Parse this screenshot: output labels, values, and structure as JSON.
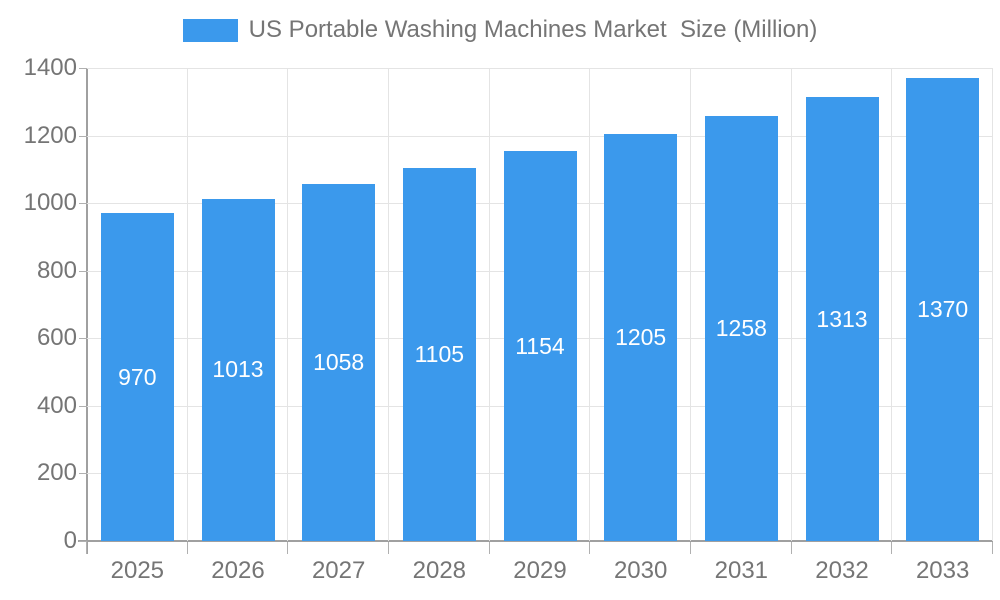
{
  "chart_data": {
    "type": "bar",
    "title": "US Portable Washing Machines Market  Size (Million)",
    "legend": {
      "position": "top",
      "label": "US Portable Washing Machines Market  Size (Million)"
    },
    "categories": [
      "2025",
      "2026",
      "2027",
      "2028",
      "2029",
      "2030",
      "2031",
      "2032",
      "2033"
    ],
    "values": [
      970,
      1013,
      1058,
      1105,
      1154,
      1205,
      1258,
      1313,
      1370
    ],
    "xlabel": "",
    "ylabel": "",
    "ylim": [
      0,
      1400
    ],
    "yticks": [
      0,
      200,
      400,
      600,
      800,
      1000,
      1200,
      1400
    ],
    "grid": true,
    "value_labels": "inside-center",
    "colors": {
      "bar": "#3b99ec",
      "axis_text": "#757575",
      "title_text": "#757575",
      "grid_line": "#e4e4e4",
      "axis_line": "#a0a0a0",
      "tick_line": "#b0b0b0",
      "value_label": "#ffffff",
      "background": "#ffffff"
    }
  }
}
